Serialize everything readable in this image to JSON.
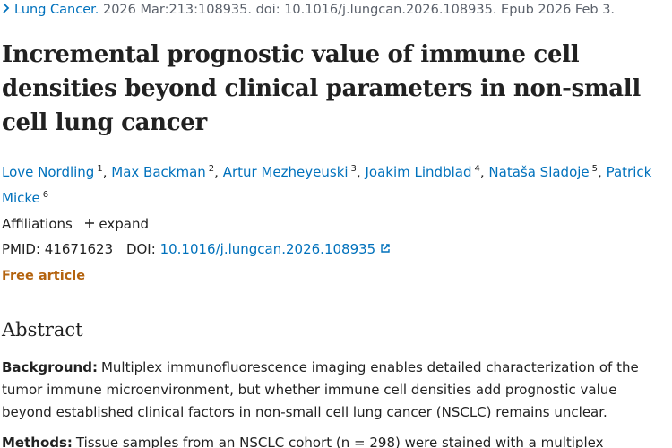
{
  "citation": {
    "journal": "Lung Cancer.",
    "details": "2026 Mar:213:108935. doi: 10.1016/j.lungcan.2026.108935. Epub 2026 Feb 3."
  },
  "title": "Incremental prognostic value of immune cell densities beyond clinical parameters in non-small cell lung cancer",
  "author_separator": ",",
  "authors": [
    {
      "name": "Love Nordling",
      "affiliation": "1"
    },
    {
      "name": "Max Backman",
      "affiliation": "2"
    },
    {
      "name": "Artur Mezheyeuski",
      "affiliation": "3"
    },
    {
      "name": "Joakim Lindblad",
      "affiliation": "4"
    },
    {
      "name": "Nataša Sladoje",
      "affiliation": "5"
    },
    {
      "name": "Patrick Micke",
      "affiliation": "6"
    }
  ],
  "affiliations": {
    "label": "Affiliations",
    "toggle": "expand"
  },
  "identifiers": {
    "pmid_label": "PMID:",
    "pmid": "41671623",
    "doi_label": "DOI:",
    "doi": "10.1016/j.lungcan.2026.108935"
  },
  "access": "Free article",
  "abstract": {
    "heading": "Abstract",
    "sections": [
      {
        "label": "Background:",
        "text": "Multiplex immunofluorescence imaging enables detailed characterization of the tumor immune microenvironment, but whether immune cell densities add prognostic value beyond established clinical factors in non-small cell lung cancer (NSCLC) remains unclear."
      },
      {
        "label": "Methods:",
        "text": "Tissue samples from an NSCLC cohort (n = 298) were stained with a multiplex"
      }
    ]
  }
}
